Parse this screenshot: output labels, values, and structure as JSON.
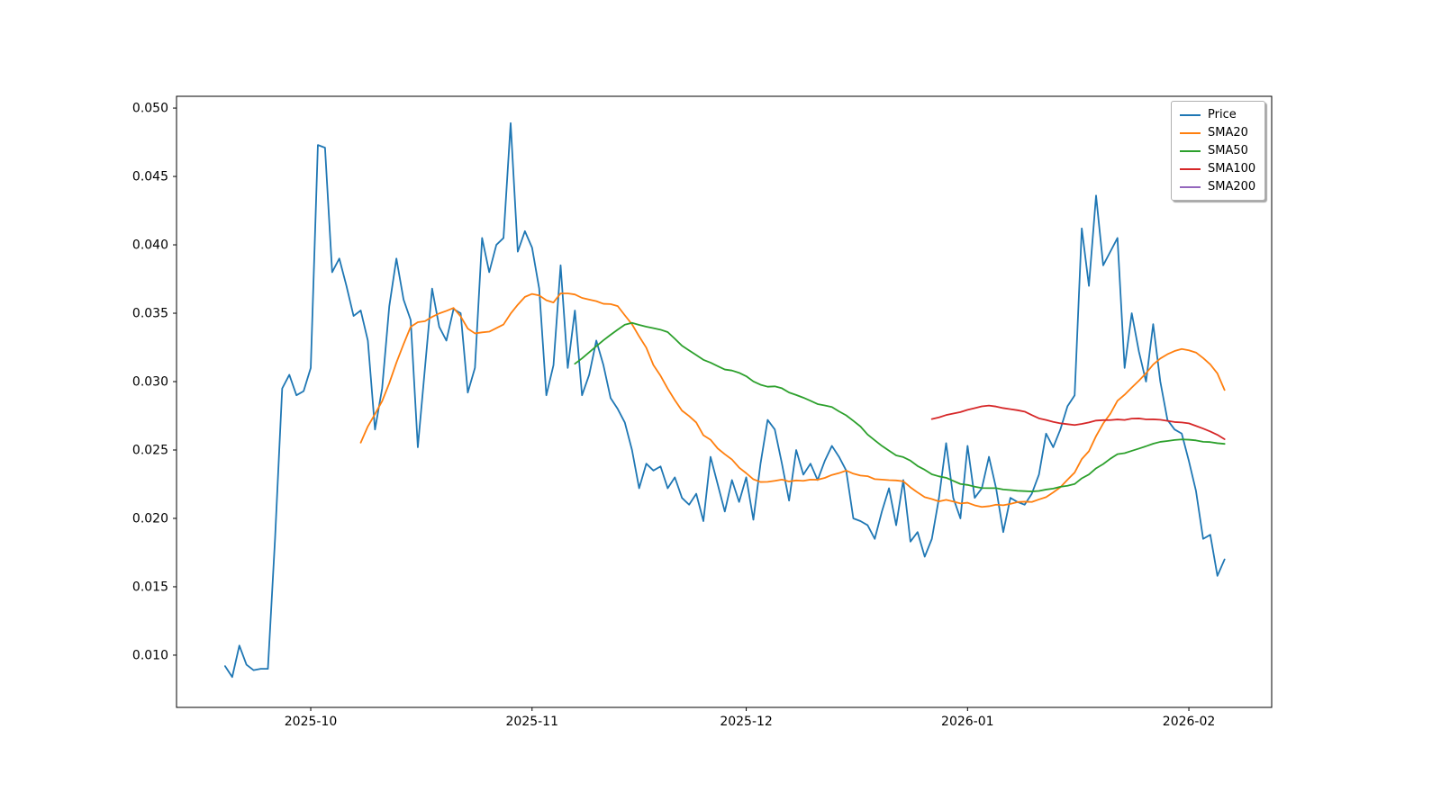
{
  "figure": {
    "background": "#ffffff",
    "frame_color": "#000000"
  },
  "chart_data": {
    "type": "line",
    "title": "",
    "xlabel": "",
    "ylabel": "",
    "grid": false,
    "legend": {
      "position": "upper-right",
      "entries": [
        "Price",
        "SMA20",
        "SMA50",
        "SMA100",
        "SMA200"
      ]
    },
    "x_axis": {
      "start_date": "2025-09-19",
      "end_date": "2026-02-06",
      "frequency": "daily",
      "domain_days": [
        -6.8,
        146.6
      ],
      "ticks": [
        {
          "label": "2025-10",
          "day": 12
        },
        {
          "label": "2025-11",
          "day": 43
        },
        {
          "label": "2025-12",
          "day": 73
        },
        {
          "label": "2026-01",
          "day": 104
        },
        {
          "label": "2026-02",
          "day": 135
        }
      ]
    },
    "y_axis": {
      "domain": [
        0.00618,
        0.05086
      ],
      "ticks": [
        {
          "label": "0.010",
          "value": 0.01
        },
        {
          "label": "0.015",
          "value": 0.015
        },
        {
          "label": "0.020",
          "value": 0.02
        },
        {
          "label": "0.025",
          "value": 0.025
        },
        {
          "label": "0.030",
          "value": 0.03
        },
        {
          "label": "0.035",
          "value": 0.035
        },
        {
          "label": "0.040",
          "value": 0.04
        },
        {
          "label": "0.045",
          "value": 0.045
        },
        {
          "label": "0.050",
          "value": 0.05
        }
      ]
    },
    "series": [
      {
        "name": "Price",
        "color": "#1f77b4",
        "kind": "raw",
        "values": [
          0.0092,
          0.0084,
          0.0107,
          0.0093,
          0.0089,
          0.009,
          0.009,
          0.0185,
          0.0295,
          0.0305,
          0.029,
          0.0293,
          0.031,
          0.0473,
          0.0471,
          0.038,
          0.039,
          0.037,
          0.0348,
          0.0352,
          0.033,
          0.0265,
          0.0295,
          0.0355,
          0.039,
          0.036,
          0.0345,
          0.0252,
          0.031,
          0.0368,
          0.034,
          0.033,
          0.0353,
          0.035,
          0.0292,
          0.031,
          0.0405,
          0.038,
          0.04,
          0.0405,
          0.0489,
          0.0395,
          0.041,
          0.0398,
          0.0368,
          0.029,
          0.0312,
          0.0385,
          0.031,
          0.0352,
          0.029,
          0.0305,
          0.033,
          0.0312,
          0.0288,
          0.028,
          0.027,
          0.025,
          0.0222,
          0.024,
          0.0235,
          0.0238,
          0.0222,
          0.023,
          0.0215,
          0.021,
          0.0218,
          0.0198,
          0.0245,
          0.0225,
          0.0205,
          0.0228,
          0.0212,
          0.023,
          0.0199,
          0.024,
          0.0272,
          0.0265,
          0.024,
          0.0213,
          0.025,
          0.0232,
          0.024,
          0.0228,
          0.0242,
          0.0253,
          0.0245,
          0.0235,
          0.02,
          0.0198,
          0.0195,
          0.0185,
          0.0205,
          0.0222,
          0.0195,
          0.0228,
          0.0183,
          0.019,
          0.0172,
          0.0185,
          0.0215,
          0.0255,
          0.0215,
          0.02,
          0.0253,
          0.0215,
          0.0222,
          0.0245,
          0.0222,
          0.019,
          0.0215,
          0.0212,
          0.021,
          0.0218,
          0.0232,
          0.0262,
          0.0252,
          0.0265,
          0.0282,
          0.029,
          0.0412,
          0.037,
          0.0436,
          0.0385,
          0.0395,
          0.0405,
          0.031,
          0.035,
          0.0322,
          0.03,
          0.0342,
          0.03,
          0.0272,
          0.0265,
          0.0262,
          0.0242,
          0.022,
          0.0185,
          0.0188,
          0.0158,
          0.017
        ]
      },
      {
        "name": "SMA20",
        "color": "#ff7f0e",
        "kind": "sma",
        "window": 20
      },
      {
        "name": "SMA50",
        "color": "#2ca02c",
        "kind": "sma",
        "window": 50
      },
      {
        "name": "SMA100",
        "color": "#d62728",
        "kind": "sma",
        "window": 100
      },
      {
        "name": "SMA200",
        "color": "#9467bd",
        "kind": "sma",
        "window": 200
      }
    ]
  }
}
